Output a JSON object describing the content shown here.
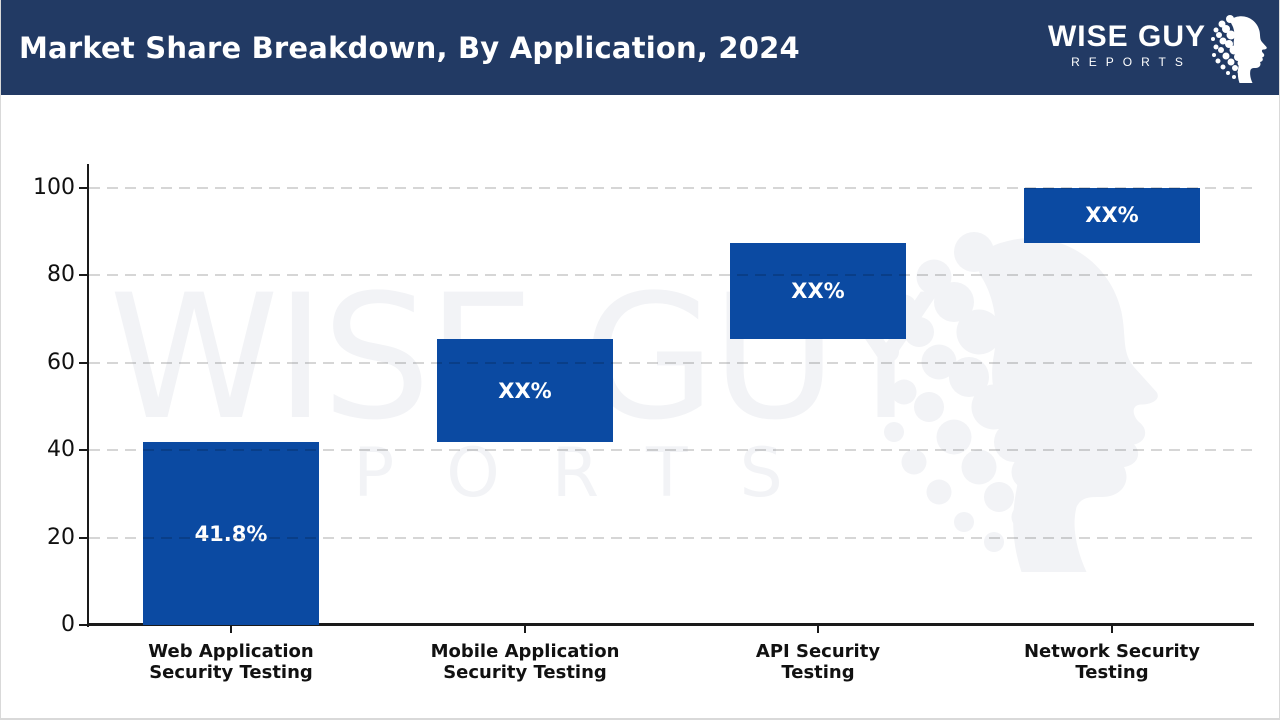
{
  "header": {
    "title": "Market Share Breakdown, By Application, 2024",
    "bg_color": "#223a64",
    "logo": {
      "wordmark": "WISE GUY",
      "subtext": "REPORTS"
    }
  },
  "watermark": {
    "line1": "WISE GUY",
    "line2": "REPORTS"
  },
  "chart_data": {
    "type": "bar",
    "subtype": "waterfall-breakdown",
    "title": "Market Share Breakdown, By Application, 2024",
    "categories": [
      [
        "Web Application",
        "Security Testing"
      ],
      [
        "Mobile Application",
        "Security Testing"
      ],
      [
        "API Security",
        "Testing"
      ],
      [
        "Network Security",
        "Testing"
      ]
    ],
    "segments": [
      {
        "start": 0,
        "end": 41.8,
        "label": "41.8%"
      },
      {
        "start": 41.8,
        "end": 65.4,
        "label": "XX%"
      },
      {
        "start": 65.4,
        "end": 87.3,
        "label": "XX%"
      },
      {
        "start": 87.3,
        "end": 100.0,
        "label": "XX%"
      }
    ],
    "note": "Segment values for Mobile, API and Network bars are masked as XX% in the image; start/end read from bar pixel positions.",
    "bar_color": "#0b4aa2",
    "value_label_color": "#ffffff",
    "yticks": [
      0,
      20,
      40,
      60,
      80,
      100
    ],
    "ylim": [
      0,
      100
    ],
    "xlabel": "",
    "ylabel": "",
    "grid": "horizontal dashed, drawn above bars",
    "legend": "none"
  }
}
